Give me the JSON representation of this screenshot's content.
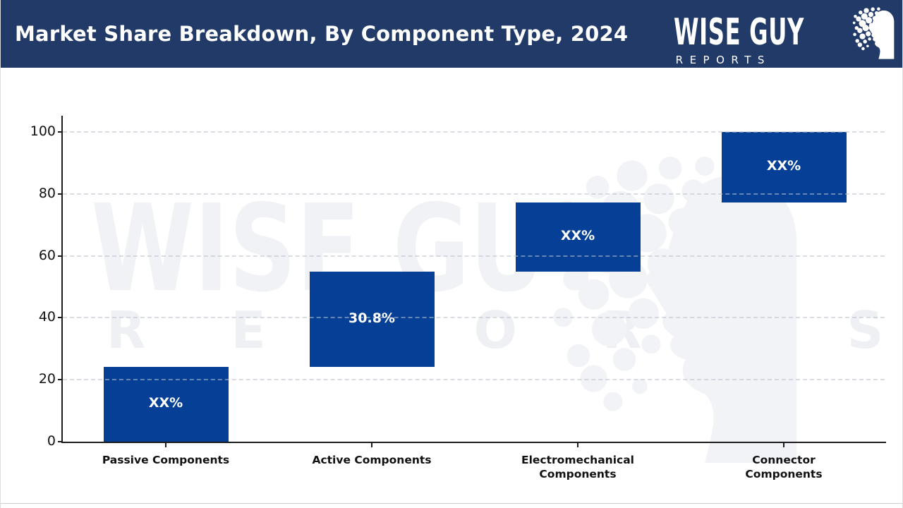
{
  "header": {
    "title": "Market Share Breakdown, By Component Type, 2024",
    "logo": {
      "wordmark": "WISE GUY",
      "reports": "REPORTS"
    }
  },
  "watermark": {
    "wordmark": "WISE GUY",
    "reports": "R E P O R T S"
  },
  "colors": {
    "header_bg": "#213a67",
    "bar_blue": "#054096",
    "bar_label_text": "#ffffff",
    "grid": "rgba(186,192,204,0.55)",
    "axis": "#1c1c1c",
    "watermark": "#f0f2f5"
  },
  "chart_data": {
    "type": "bar",
    "subtype": "stacked-waterfall-percent",
    "title": "Market Share Breakdown, By Component Type, 2024",
    "xlabel": "",
    "ylabel": "",
    "ylim": [
      0,
      100
    ],
    "yticks": [
      0,
      20,
      40,
      60,
      80,
      100
    ],
    "grid": true,
    "legend": "none",
    "categories": [
      {
        "lines": [
          "Passive Components"
        ]
      },
      {
        "lines": [
          "Active Components"
        ]
      },
      {
        "lines": [
          "Electromechanical",
          "Components"
        ]
      },
      {
        "lines": [
          "Connector",
          "Components"
        ]
      }
    ],
    "segments": [
      {
        "category": "Passive Components",
        "start": 0,
        "end": 24.1,
        "value_label": "XX%"
      },
      {
        "category": "Active Components",
        "start": 24.1,
        "end": 54.9,
        "value_label": "30.8%"
      },
      {
        "category": "Electromechanical Components",
        "start": 54.9,
        "end": 77.2,
        "value_label": "XX%"
      },
      {
        "category": "Connector Components",
        "start": 77.2,
        "end": 100,
        "value_label": "XX%"
      }
    ]
  }
}
